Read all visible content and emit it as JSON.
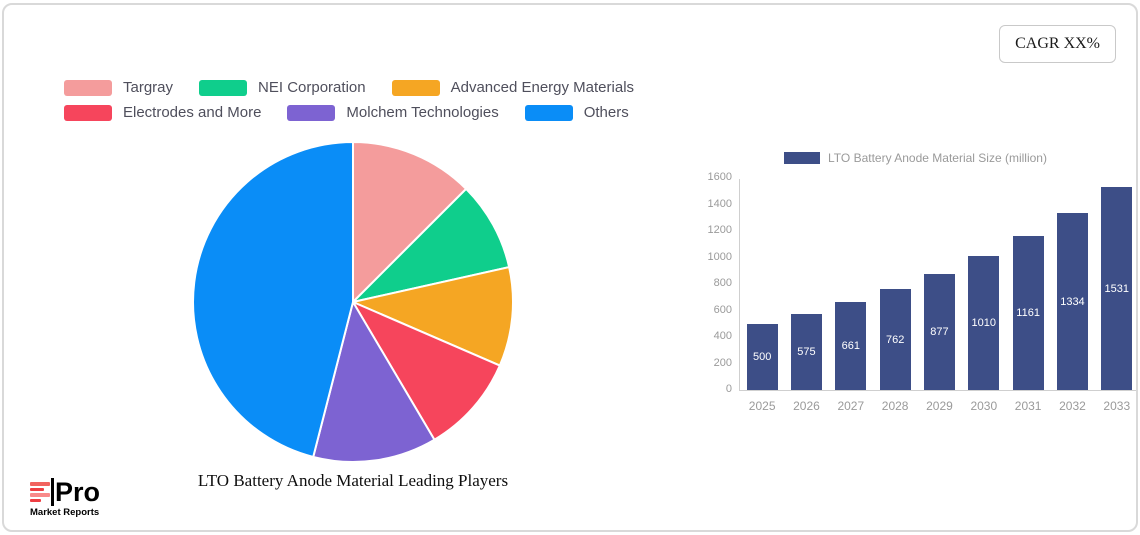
{
  "header": {
    "cagr_badge": "CAGR XX%"
  },
  "legend": {
    "items": [
      {
        "label": "Targray",
        "color": "#f49c9c"
      },
      {
        "label": "NEI Corporation",
        "color": "#0fce8c"
      },
      {
        "label": "Advanced Energy Materials",
        "color": "#f5a623"
      },
      {
        "label": "Electrodes and More",
        "color": "#f6455c"
      },
      {
        "label": "Molchem Technologies",
        "color": "#7d63d2"
      },
      {
        "label": "Others",
        "color": "#0a8df7"
      }
    ]
  },
  "chart_data": [
    {
      "type": "pie",
      "title": "LTO Battery Anode Material Leading Players",
      "labels": [
        "Targray",
        "NEI Corporation",
        "Advanced Energy Materials",
        "Electrodes and More",
        "Molchem Technologies",
        "Others"
      ],
      "values": [
        12.5,
        9,
        10,
        10,
        12.5,
        46
      ],
      "colors": [
        "#f49c9c",
        "#0fce8c",
        "#f5a623",
        "#f6455c",
        "#7d63d2",
        "#0a8df7"
      ],
      "start_angle_deg": 0,
      "slice_border_color": "#ffffff"
    },
    {
      "type": "bar",
      "legend_label": "LTO Battery Anode Material Size (million)",
      "categories": [
        "2025",
        "2026",
        "2027",
        "2028",
        "2029",
        "2030",
        "2031",
        "2032",
        "2033"
      ],
      "values": [
        500,
        575,
        661,
        762,
        877,
        1010,
        1161,
        1334,
        1531
      ],
      "ylim": [
        0,
        1600
      ],
      "yticks": [
        0,
        200,
        400,
        600,
        800,
        1000,
        1200,
        1400,
        1600
      ],
      "bar_color": "#3d4e87",
      "value_label_color": "#ffffff",
      "grid": false,
      "legend_position": "top"
    }
  ],
  "logo": {
    "brand": "Pro",
    "subtitle": "Market Reports"
  }
}
